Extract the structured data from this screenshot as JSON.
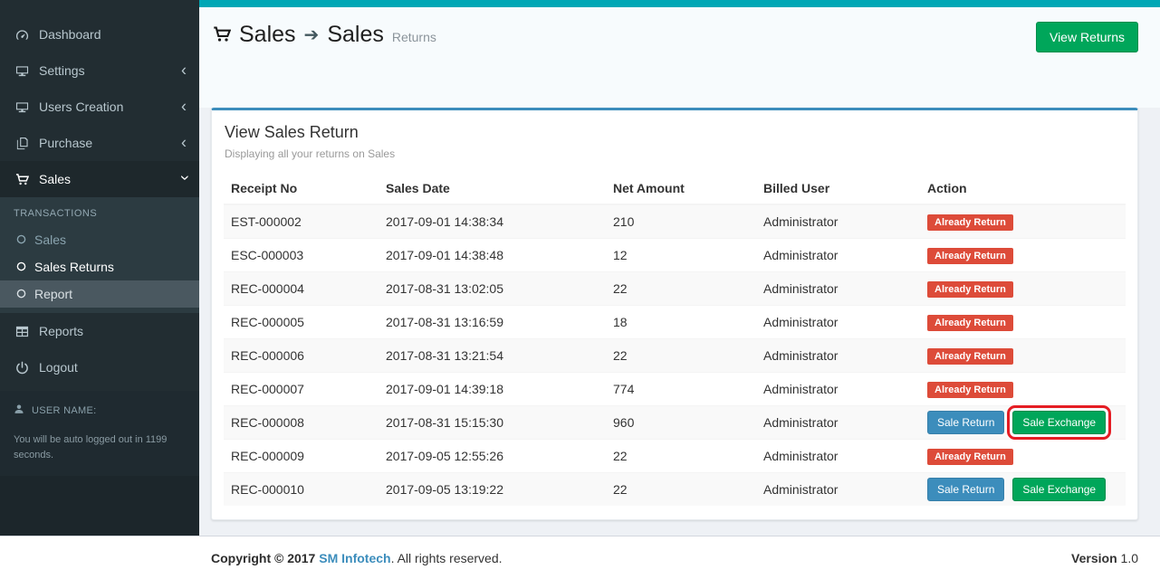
{
  "colors": {
    "accent_teal": "#00a7b5",
    "primary_blue": "#3c8dbc",
    "success_green": "#00a65a",
    "danger_red": "#dd4b39",
    "highlight_red": "#e51c23"
  },
  "sidebar": {
    "items": [
      {
        "label": "Dashboard",
        "icon": "dashboard-icon"
      },
      {
        "label": "Settings",
        "icon": "desktop-icon",
        "chevron": "left"
      },
      {
        "label": "Users Creation",
        "icon": "desktop-icon",
        "chevron": "left"
      },
      {
        "label": "Purchase",
        "icon": "files-icon",
        "chevron": "left"
      },
      {
        "label": "Sales",
        "icon": "cart-icon",
        "chevron": "down",
        "active": true
      }
    ],
    "section_header": "TRANSACTIONS",
    "submenu": [
      {
        "label": "Sales"
      },
      {
        "label": "Sales Returns",
        "current": true
      },
      {
        "label": "Report",
        "hovered": true
      }
    ],
    "bottom_items": [
      {
        "label": "Reports",
        "icon": "table-icon"
      },
      {
        "label": "Logout",
        "icon": "power-icon"
      }
    ],
    "user_label": "USER NAME:",
    "auto_logout_notice": "You will be auto logged out in 1199 seconds."
  },
  "header": {
    "title_primary": "Sales",
    "title_secondary": "Sales",
    "title_sub": "Returns",
    "action_button": "View Returns"
  },
  "panel": {
    "title": "View Sales Return",
    "subtitle": "Displaying all your returns on Sales"
  },
  "table": {
    "columns": [
      "Receipt No",
      "Sales Date",
      "Net Amount",
      "Billed User",
      "Action"
    ],
    "rows": [
      {
        "receipt_no": "EST-000002",
        "sales_date": "2017-09-01 14:38:34",
        "net_amount": "210",
        "billed_user": "Administrator",
        "actions": [
          {
            "label": "Already Return",
            "style": "danger-badge"
          }
        ]
      },
      {
        "receipt_no": "ESC-000003",
        "sales_date": "2017-09-01 14:38:48",
        "net_amount": "12",
        "billed_user": "Administrator",
        "actions": [
          {
            "label": "Already Return",
            "style": "danger-badge"
          }
        ]
      },
      {
        "receipt_no": "REC-000004",
        "sales_date": "2017-08-31 13:02:05",
        "net_amount": "22",
        "billed_user": "Administrator",
        "actions": [
          {
            "label": "Already Return",
            "style": "danger-badge"
          }
        ]
      },
      {
        "receipt_no": "REC-000005",
        "sales_date": "2017-08-31 13:16:59",
        "net_amount": "18",
        "billed_user": "Administrator",
        "actions": [
          {
            "label": "Already Return",
            "style": "danger-badge"
          }
        ]
      },
      {
        "receipt_no": "REC-000006",
        "sales_date": "2017-08-31 13:21:54",
        "net_amount": "22",
        "billed_user": "Administrator",
        "actions": [
          {
            "label": "Already Return",
            "style": "danger-badge"
          }
        ]
      },
      {
        "receipt_no": "REC-000007",
        "sales_date": "2017-09-01 14:39:18",
        "net_amount": "774",
        "billed_user": "Administrator",
        "actions": [
          {
            "label": "Already Return",
            "style": "danger-badge"
          }
        ]
      },
      {
        "receipt_no": "REC-000008",
        "sales_date": "2017-08-31 15:15:30",
        "net_amount": "960",
        "billed_user": "Administrator",
        "actions": [
          {
            "label": "Sale Return",
            "style": "primary-button"
          },
          {
            "label": "Sale Exchange",
            "style": "success-button",
            "highlighted": true
          }
        ]
      },
      {
        "receipt_no": "REC-000009",
        "sales_date": "2017-09-05 12:55:26",
        "net_amount": "22",
        "billed_user": "Administrator",
        "actions": [
          {
            "label": "Already Return",
            "style": "danger-badge"
          }
        ]
      },
      {
        "receipt_no": "REC-000010",
        "sales_date": "2017-09-05 13:19:22",
        "net_amount": "22",
        "billed_user": "Administrator",
        "actions": [
          {
            "label": "Sale Return",
            "style": "primary-button"
          },
          {
            "label": "Sale Exchange",
            "style": "success-button"
          }
        ]
      }
    ]
  },
  "footer": {
    "copyright_prefix": "Copyright © 2017",
    "company": "SM Infotech",
    "copyright_suffix": ". All rights reserved.",
    "version_label": "Version",
    "version_number": "1.0"
  }
}
